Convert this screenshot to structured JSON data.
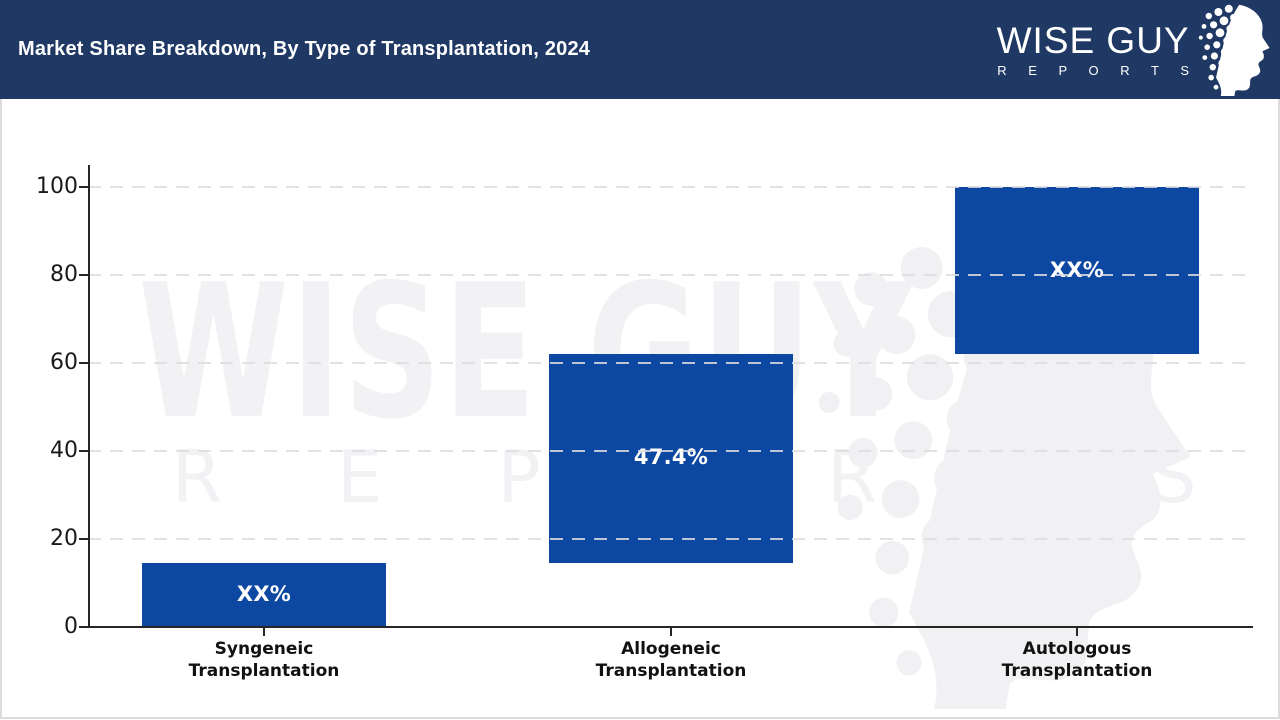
{
  "header": {
    "title": "Market Share Breakdown, By Type of Transplantation, 2024",
    "background": "#1F3864",
    "brand": {
      "line1": "WISE GUY",
      "line2": "R E P O R T S"
    }
  },
  "watermark": {
    "line1": "WISE GUY",
    "line2": "R E P O R T S"
  },
  "chart_data": {
    "type": "bar",
    "subtype": "floating-waterfall-columns",
    "title": "Market Share Breakdown, By Type of Transplantation, 2024",
    "categories": [
      "Syngeneic Transplantation",
      "Allogeneic Transplantation",
      "Autologous Transplantation"
    ],
    "bars": [
      {
        "category": "Syngeneic Transplantation",
        "start": 0,
        "end": 14.6,
        "label": "XX%"
      },
      {
        "category": "Allogeneic Transplantation",
        "start": 14.6,
        "end": 62,
        "label": "47.4%"
      },
      {
        "category": "Autologous Transplantation",
        "start": 62,
        "end": 100,
        "label": "XX%"
      }
    ],
    "xlabel": "",
    "ylabel": "",
    "ylim": [
      0,
      105
    ],
    "yticks": [
      0,
      20,
      40,
      60,
      80,
      100
    ],
    "grid": "horizontal-dashed-drawn-above-bars",
    "legend": "none",
    "bar_color": "#0C47A1",
    "bar_label_color": "#FFFFFF",
    "axis_color": "#262626"
  }
}
